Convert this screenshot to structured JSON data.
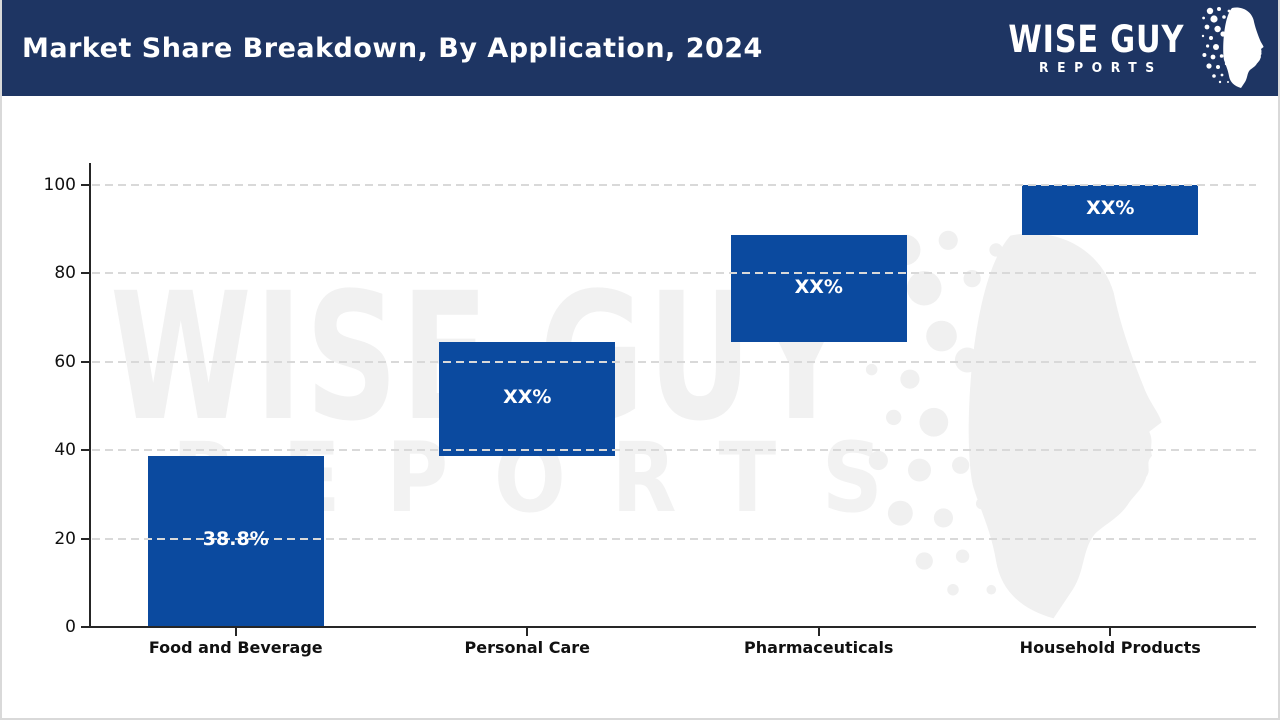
{
  "header": {
    "title": "Market Share Breakdown, By Application, 2024",
    "logo": {
      "line1": "WISE GUY",
      "line2": "REPORTS",
      "head_icon": "dot-head-profile"
    }
  },
  "watermark": {
    "line1": "WISE GUY",
    "line2": "REPORTS",
    "head_icon": "dot-head-profile"
  },
  "colors": {
    "header_bg": "#1e3563",
    "bar_blue": "#0b4a9f",
    "grid": "#d9d9d9",
    "axis": "#262626",
    "watermark": "#f1f1f1"
  },
  "chart_data": {
    "type": "bar",
    "subtype": "waterfall",
    "title": "Market Share Breakdown, By Application, 2024",
    "xlabel": "",
    "ylabel": "",
    "ylim": [
      0,
      105
    ],
    "yticks": [
      0,
      20,
      40,
      60,
      80,
      100
    ],
    "grid": "horizontal-dashed-over-bars",
    "legend": "none",
    "categories": [
      "Food and Beverage",
      "Personal Care",
      "Pharmaceuticals",
      "Household Products"
    ],
    "segments": [
      {
        "category": "Food and Beverage",
        "start": 0,
        "end": 38.8,
        "label": "38.8%"
      },
      {
        "category": "Personal Care",
        "start": 38.8,
        "end": 64.6,
        "label": "XX%"
      },
      {
        "category": "Pharmaceuticals",
        "start": 64.6,
        "end": 88.6,
        "label": "XX%"
      },
      {
        "category": "Household Products",
        "start": 88.6,
        "end": 100,
        "label": "XX%"
      }
    ]
  }
}
